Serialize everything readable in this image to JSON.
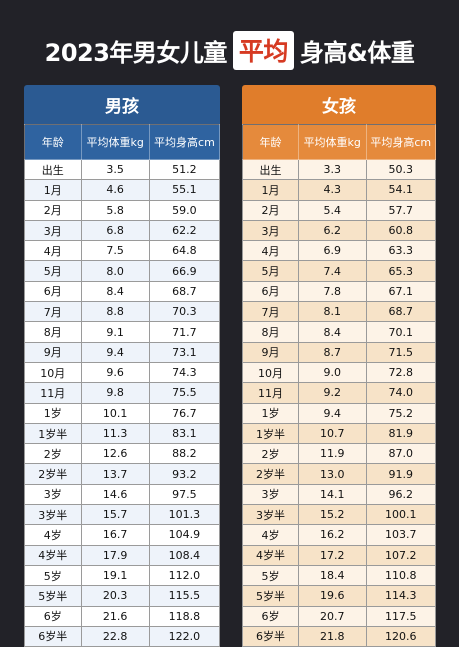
{
  "title": {
    "prefix": "2023年男女儿童",
    "highlight": "平均",
    "suffix": "身高&体重"
  },
  "boys": {
    "header": "男孩",
    "columns": [
      "年龄",
      "平均体重kg",
      "平均身高cm"
    ],
    "rows": [
      [
        "出生",
        "3.5",
        "51.2"
      ],
      [
        "1月",
        "4.6",
        "55.1"
      ],
      [
        "2月",
        "5.8",
        "59.0"
      ],
      [
        "3月",
        "6.8",
        "62.2"
      ],
      [
        "4月",
        "7.5",
        "64.8"
      ],
      [
        "5月",
        "8.0",
        "66.9"
      ],
      [
        "6月",
        "8.4",
        "68.7"
      ],
      [
        "7月",
        "8.8",
        "70.3"
      ],
      [
        "8月",
        "9.1",
        "71.7"
      ],
      [
        "9月",
        "9.4",
        "73.1"
      ],
      [
        "10月",
        "9.6",
        "74.3"
      ],
      [
        "11月",
        "9.8",
        "75.5"
      ],
      [
        "1岁",
        "10.1",
        "76.7"
      ],
      [
        "1岁半",
        "11.3",
        "83.1"
      ],
      [
        "2岁",
        "12.6",
        "88.2"
      ],
      [
        "2岁半",
        "13.7",
        "93.2"
      ],
      [
        "3岁",
        "14.6",
        "97.5"
      ],
      [
        "3岁半",
        "15.7",
        "101.3"
      ],
      [
        "4岁",
        "16.7",
        "104.9"
      ],
      [
        "4岁半",
        "17.9",
        "108.4"
      ],
      [
        "5岁",
        "19.1",
        "112.0"
      ],
      [
        "5岁半",
        "20.3",
        "115.5"
      ],
      [
        "6岁",
        "21.6",
        "118.8"
      ],
      [
        "6岁半",
        "22.8",
        "122.0"
      ]
    ]
  },
  "girls": {
    "header": "女孩",
    "columns": [
      "年龄",
      "平均体重kg",
      "平均身高cm"
    ],
    "rows": [
      [
        "出生",
        "3.3",
        "50.3"
      ],
      [
        "1月",
        "4.3",
        "54.1"
      ],
      [
        "2月",
        "5.4",
        "57.7"
      ],
      [
        "3月",
        "6.2",
        "60.8"
      ],
      [
        "4月",
        "6.9",
        "63.3"
      ],
      [
        "5月",
        "7.4",
        "65.3"
      ],
      [
        "6月",
        "7.8",
        "67.1"
      ],
      [
        "7月",
        "8.1",
        "68.7"
      ],
      [
        "8月",
        "8.4",
        "70.1"
      ],
      [
        "9月",
        "8.7",
        "71.5"
      ],
      [
        "10月",
        "9.0",
        "72.8"
      ],
      [
        "11月",
        "9.2",
        "74.0"
      ],
      [
        "1岁",
        "9.4",
        "75.2"
      ],
      [
        "1岁半",
        "10.7",
        "81.9"
      ],
      [
        "2岁",
        "11.9",
        "87.0"
      ],
      [
        "2岁半",
        "13.0",
        "91.9"
      ],
      [
        "3岁",
        "14.1",
        "96.2"
      ],
      [
        "3岁半",
        "15.2",
        "100.1"
      ],
      [
        "4岁",
        "16.2",
        "103.7"
      ],
      [
        "4岁半",
        "17.2",
        "107.2"
      ],
      [
        "5岁",
        "18.4",
        "110.8"
      ],
      [
        "5岁半",
        "19.6",
        "114.3"
      ],
      [
        "6岁",
        "20.7",
        "117.5"
      ],
      [
        "6岁半",
        "21.8",
        "120.6"
      ]
    ]
  },
  "colors": {
    "background": "#222228",
    "boys_header": "#2b5a92",
    "girls_header": "#e07d2b",
    "title_highlight": "#d63a22"
  }
}
